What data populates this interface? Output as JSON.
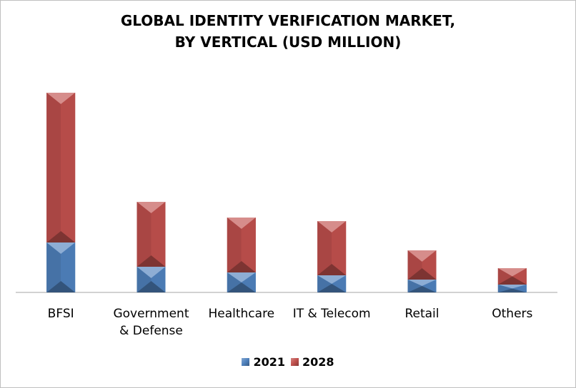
{
  "chart_data": {
    "type": "bar",
    "stacked": true,
    "title": "GLOBAL IDENTITY VERIFICATION MARKET, BY VERTICAL (USD MILLION)",
    "title_lines": [
      "GLOBAL IDENTITY VERIFICATION MARKET,",
      "BY VERTICAL (USD MILLION)"
    ],
    "categories": [
      "BFSI",
      "Government & Defense",
      "Healthcare",
      "IT & Telecom",
      "Retail",
      "Others"
    ],
    "category_lines": [
      [
        "BFSI"
      ],
      [
        "Government",
        "& Defense"
      ],
      [
        "Healthcare"
      ],
      [
        "IT & Telecom"
      ],
      [
        "Retail"
      ],
      [
        "Others"
      ]
    ],
    "series": [
      {
        "name": "2021",
        "color": "#4f81bd",
        "values": [
          70,
          36,
          28,
          24,
          18,
          11
        ]
      },
      {
        "name": "2028",
        "color": "#c0504d",
        "values": [
          210,
          91,
          77,
          76,
          41,
          23
        ]
      }
    ],
    "ylim": [
      0,
      300
    ],
    "grid": false,
    "legend_position": "bottom"
  }
}
